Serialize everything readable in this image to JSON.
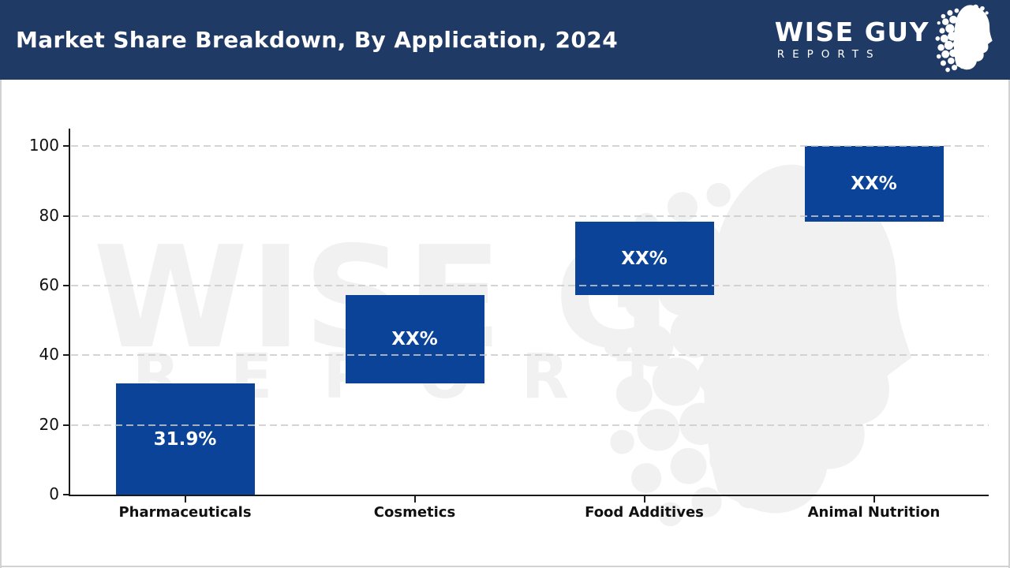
{
  "header": {
    "title": "Market Share Breakdown, By Application, 2024",
    "logo": {
      "line1": "WISE GUY",
      "line2": "REPORTS"
    }
  },
  "watermark": {
    "line1": "WISE GUY",
    "line2": "REPORTS"
  },
  "colors": {
    "header_bg": "#203a66",
    "bar": "#0a4397",
    "value_label": "#ffffff",
    "axis": "#1a1a1a",
    "watermark": "#f1f1f1",
    "edge_border": "#d2d2d2"
  },
  "chart_data": {
    "type": "bar",
    "variant": "waterfall-stacked",
    "title": "Market Share Breakdown, By Application, 2024",
    "categories": [
      "Pharmaceuticals",
      "Cosmetics",
      "Food Additives",
      "Animal Nutrition"
    ],
    "segments": [
      {
        "category": "Pharmaceuticals",
        "start": 0,
        "end": 31.9,
        "label": "31.9%"
      },
      {
        "category": "Cosmetics",
        "start": 31.9,
        "end": 57.3,
        "label": "XX%"
      },
      {
        "category": "Food Additives",
        "start": 57.3,
        "end": 78.3,
        "label": "XX%"
      },
      {
        "category": "Animal Nutrition",
        "start": 78.3,
        "end": 100.0,
        "label": "XX%"
      }
    ],
    "values_pct": [
      31.9,
      25.4,
      21.0,
      21.7
    ],
    "yticks": [
      0,
      20,
      40,
      60,
      80,
      100
    ],
    "ylim": [
      0,
      105
    ],
    "xlabel": "",
    "ylabel": "",
    "grid": "horizontal-dashed-over-bars",
    "legend_position": "none"
  }
}
